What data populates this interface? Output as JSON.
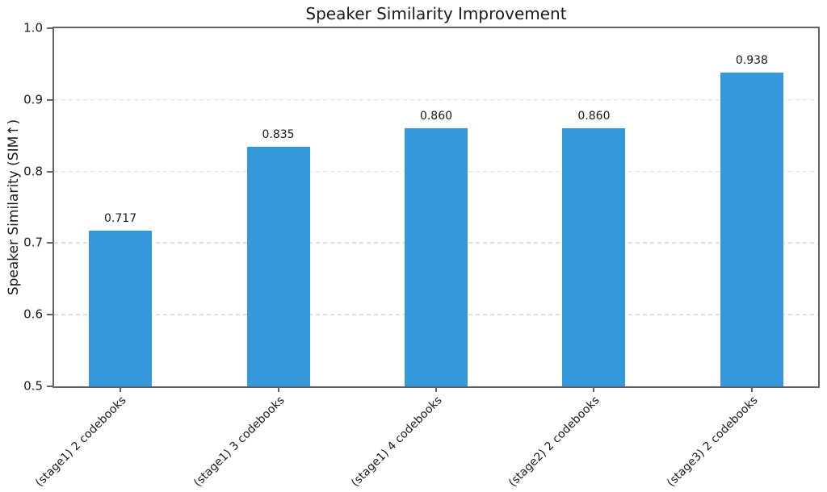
{
  "chart_data": {
    "type": "bar",
    "title": "Speaker Similarity Improvement",
    "xlabel": "",
    "ylabel": "Speaker Similarity (SIM↑)",
    "categories": [
      "(stage1) 2 codebooks",
      "(stage1) 3 codebooks",
      "(stage1) 4 codebooks",
      "(stage2) 2 codebooks",
      "(stage3) 2 codebooks"
    ],
    "values": [
      0.717,
      0.835,
      0.86,
      0.86,
      0.938
    ],
    "value_labels": [
      "0.717",
      "0.835",
      "0.860",
      "0.860",
      "0.938"
    ],
    "ylim": [
      0.5,
      1.0
    ],
    "yticks": [
      0.5,
      0.6,
      0.7,
      0.8,
      0.9,
      1.0
    ],
    "ytick_labels": [
      "0.5",
      "0.6",
      "0.7",
      "0.8",
      "0.9",
      "1.0"
    ],
    "grid": "horizontal-dashed",
    "legend": "none",
    "bar_color": "#3498db"
  },
  "colors": {
    "bar": "#3498db",
    "spine": "#636363",
    "grid": "#dcdcdc",
    "text": "#1a1a1a",
    "background": "#ffffff"
  }
}
